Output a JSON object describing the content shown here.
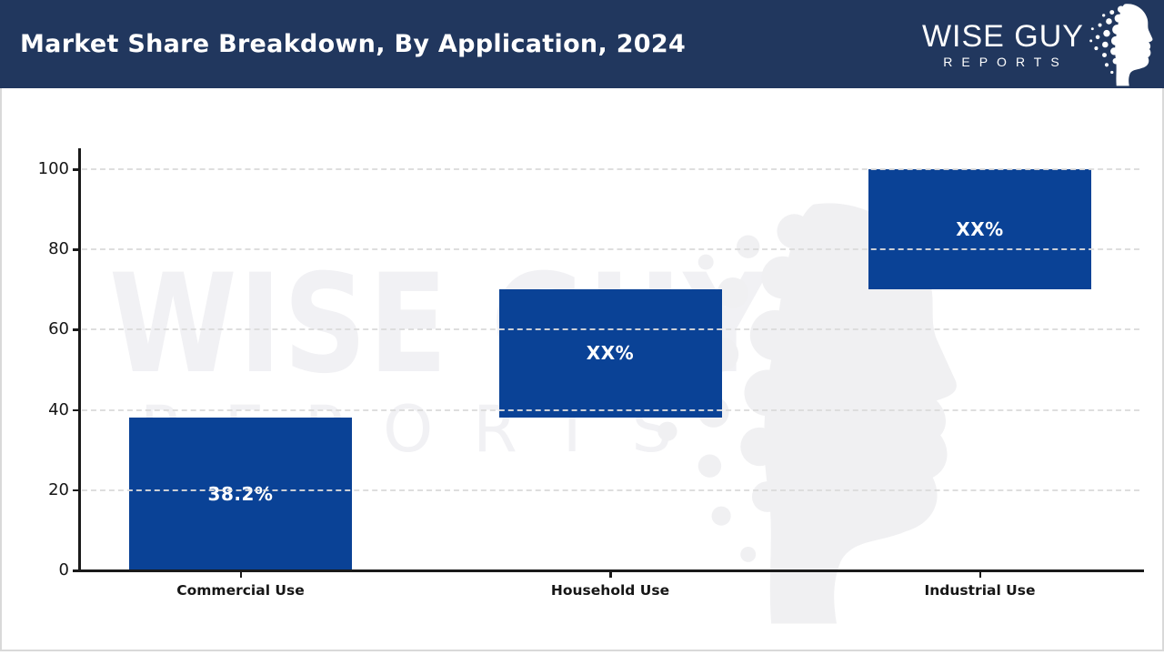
{
  "header": {
    "title": "Market Share Breakdown, By Application, 2024",
    "logo": {
      "line1": "WISE GUY",
      "line2": "REPORTS"
    }
  },
  "watermark": {
    "line1": "WISE GUY",
    "line2": "REPORTS"
  },
  "chart_data": {
    "type": "bar",
    "variant": "waterfall-segmented",
    "title": "Market Share Breakdown, By Application, 2024",
    "categories": [
      "Commercial Use",
      "Household Use",
      "Industrial Use"
    ],
    "segments": [
      {
        "category": "Commercial Use",
        "start": 0,
        "end": 38.2,
        "label": "38.2%"
      },
      {
        "category": "Household Use",
        "start": 38.2,
        "end": 70,
        "label": "XX%"
      },
      {
        "category": "Industrial Use",
        "start": 70,
        "end": 100,
        "label": "XX%"
      }
    ],
    "yticks": [
      0,
      20,
      40,
      60,
      80,
      100
    ],
    "ylim": [
      0,
      105
    ],
    "xlabel": "",
    "ylabel": "",
    "grid": "horizontal-dashed",
    "legend": "none"
  },
  "colors": {
    "header_bg": "#21375e",
    "bar": "#0a4296",
    "bar_label": "#ffffff",
    "grid": "#dcdcdc",
    "axis": "#1a1a1a",
    "watermark": "#f1f1f4",
    "content_border": "#d9d9d9"
  }
}
